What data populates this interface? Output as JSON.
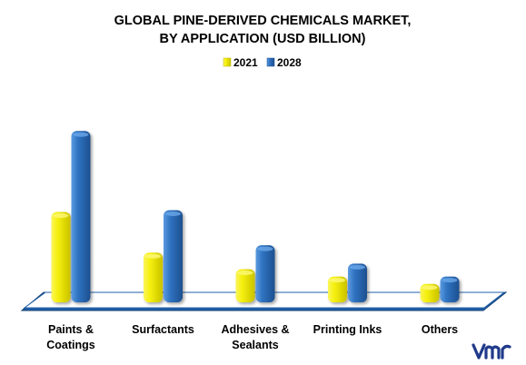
{
  "chart_data": {
    "type": "bar",
    "title_lines": [
      "GLOBAL PINE-DERIVED CHEMICALS MARKET,",
      "BY APPLICATION (USD BILLION)"
    ],
    "categories": [
      [
        "Paints &",
        "Coatings"
      ],
      [
        "Surfactants"
      ],
      [
        "Adhesives &",
        "Sealants"
      ],
      [
        "Printing Inks"
      ],
      [
        "Others"
      ]
    ],
    "series": [
      {
        "name": "2021",
        "color": "#f5ef0b",
        "values": [
          4.9,
          2.7,
          1.8,
          1.4,
          1.0
        ]
      },
      {
        "name": "2028",
        "color": "#2f73c1",
        "values": [
          9.3,
          5.0,
          3.1,
          2.1,
          1.4
        ]
      }
    ],
    "ylim": [
      0,
      10
    ],
    "legend_position": "top-center",
    "grid": false
  },
  "logo": {
    "text": "vmr",
    "color": "#1f3a8a"
  }
}
